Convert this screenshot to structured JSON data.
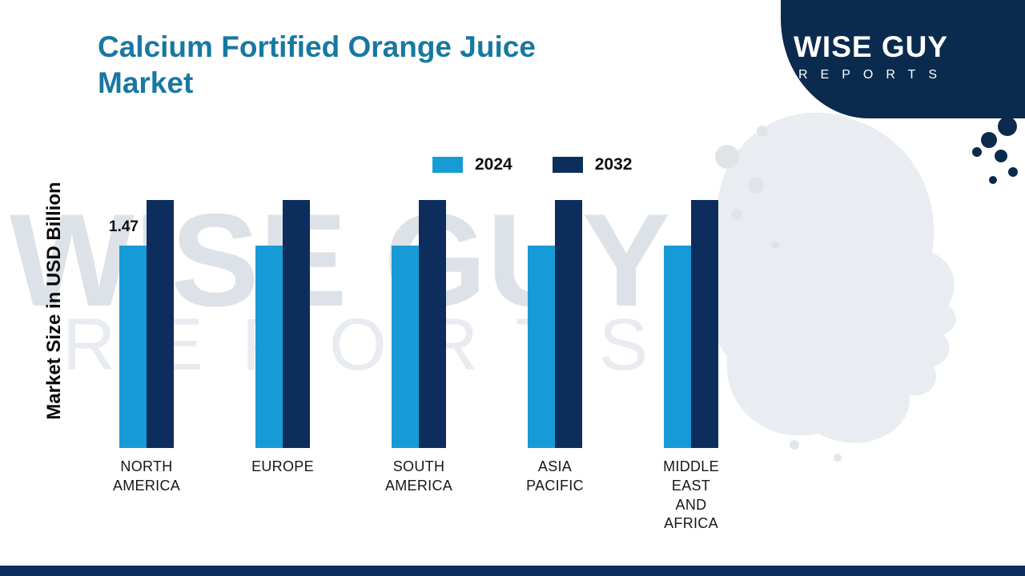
{
  "page": {
    "title": "Calcium Fortified Orange Juice Market"
  },
  "logo": {
    "line1": "WISE GUY",
    "line2": "REPORTS"
  },
  "watermark": {
    "line1": "WISE GUY",
    "line2": "REPORTS"
  },
  "colors": {
    "title": "#1878a2",
    "bar_2024": "#179bd7",
    "bar_2032": "#0d2e5c",
    "footer": "#0d2e5c",
    "logo_bg": "#0a2b4d",
    "watermark_text": "#dde2e8",
    "watermark_head": "#e9edf1"
  },
  "chart_data": {
    "type": "bar",
    "title": "Calcium Fortified Orange Juice Market",
    "ylabel": "Market Size in USD Billion",
    "xlabel": "",
    "categories": [
      "NORTH AMERICA",
      "EUROPE",
      "SOUTH AMERICA",
      "ASIA PACIFIC",
      "MIDDLE EAST AND AFRICA"
    ],
    "series": [
      {
        "name": "2024",
        "color": "#179bd7",
        "values": [
          1.47,
          1.47,
          1.47,
          1.47,
          1.47
        ]
      },
      {
        "name": "2032",
        "color": "#0d2e5c",
        "values": [
          1.8,
          1.8,
          1.8,
          1.8,
          1.8
        ]
      }
    ],
    "value_labels": [
      "1.47",
      "",
      "",
      "",
      ""
    ],
    "ylim": [
      0,
      1.8
    ],
    "grid": false,
    "legend_position": "top-center"
  }
}
